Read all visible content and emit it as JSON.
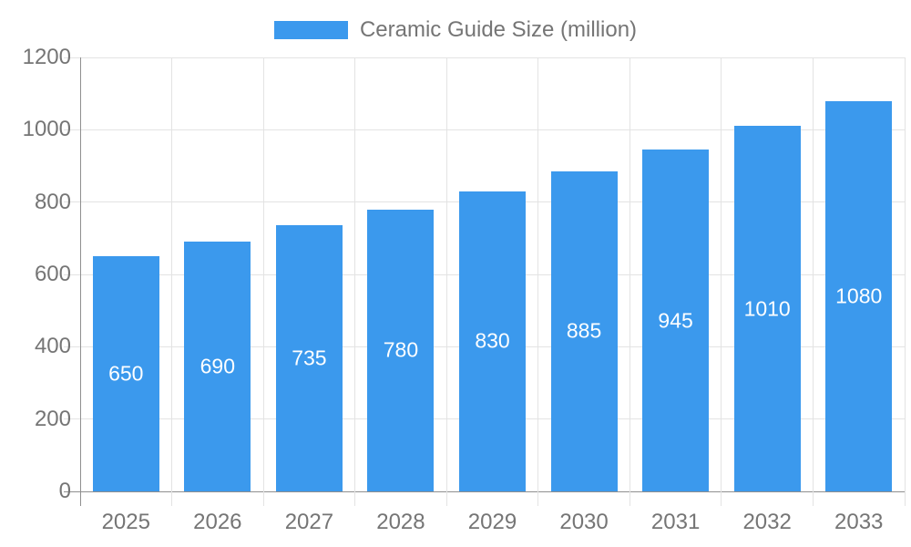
{
  "chart_data": {
    "type": "bar",
    "title": "",
    "legend": {
      "label": "Ceramic Guide Size (million)",
      "position": "top"
    },
    "categories": [
      "2025",
      "2026",
      "2027",
      "2028",
      "2029",
      "2030",
      "2031",
      "2032",
      "2033"
    ],
    "series": [
      {
        "name": "Ceramic Guide Size (million)",
        "values": [
          650,
          690,
          735,
          780,
          830,
          885,
          945,
          1010,
          1080
        ]
      }
    ],
    "bar_value_labels": [
      "650",
      "690",
      "735",
      "780",
      "830",
      "885",
      "945",
      "1010",
      "1080"
    ],
    "xlabel": "",
    "ylabel": "",
    "ylim": [
      0,
      1200
    ],
    "ytick_step": 200,
    "ytick_labels": [
      "0",
      "200",
      "400",
      "600",
      "800",
      "1000",
      "1200"
    ],
    "grid": "on",
    "legend_position": "top-center",
    "colors": {
      "bar": "#3B99ED",
      "grid_line": "#E3E3E3",
      "axis_line": "#8F8F8F",
      "axis_text": "#757575",
      "bar_value_text": "#FFFFFF",
      "background": "#FFFFFF"
    }
  }
}
